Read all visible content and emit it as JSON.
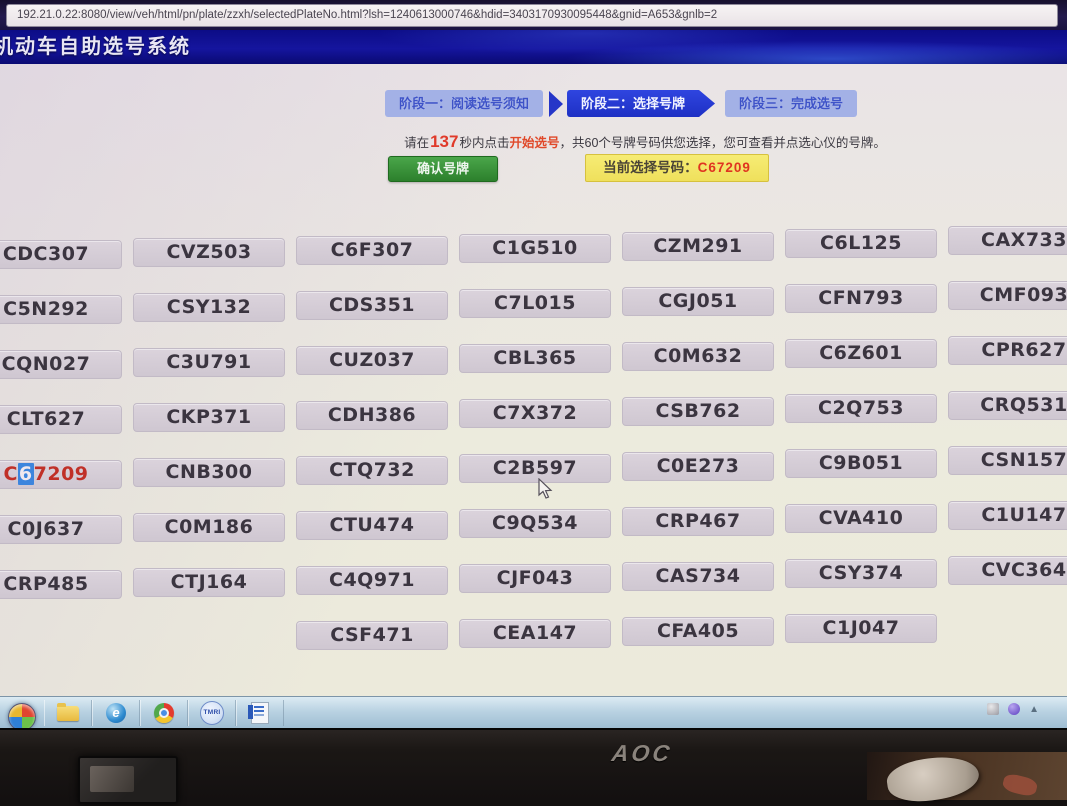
{
  "browser": {
    "url": "192.21.0.22:8080/view/veh/html/pn/plate/zzxh/selectedPlateNo.html?lsh=1240613000746&hdid=3403170930095448&gnid=A653&gnlb=2"
  },
  "header": {
    "title": "机动车自助选号系统"
  },
  "stages": [
    {
      "label": "阶段一：阅读选号须知",
      "active": false
    },
    {
      "label": "阶段二：选择号牌",
      "active": true
    },
    {
      "label": "阶段三：完成选号",
      "active": false
    }
  ],
  "instruction": {
    "prefix": "请在",
    "countdown": "137",
    "middle": "秒内点击",
    "link": "开始选号",
    "suffix": "，共60个号牌号码供您选择，您可查看并点选心仪的号牌。"
  },
  "toolbar": {
    "confirm_label": "确认号牌",
    "current_label": "当前选择号码：",
    "current_value": "C67209"
  },
  "plates": {
    "selected": "C67209",
    "selected_parts": {
      "pre": "C",
      "highlight": "6",
      "post": "7209"
    },
    "check_glyph": "✔",
    "columns": [
      [
        "CDC307",
        "C5N292",
        "CQN027",
        "CLT627",
        "C67209",
        "C0J637",
        "CRP485"
      ],
      [
        "CVZ503",
        "CSY132",
        "C3U791",
        "CKP371",
        "CNB300",
        "C0M186",
        "CTJ164"
      ],
      [
        "C6F307",
        "CDS351",
        "CUZ037",
        "CDH386",
        "CTQ732",
        "CTU474",
        "C4Q971",
        "CSF471"
      ],
      [
        "C1G510",
        "C7L015",
        "CBL365",
        "C7X372",
        "C2B597",
        "C9Q534",
        "CJF043",
        "CEA147"
      ],
      [
        "CZM291",
        "CGJ051",
        "C0M632",
        "CSB762",
        "C0E273",
        "CRP467",
        "CAS734",
        "CFA405"
      ],
      [
        "C6L125",
        "CFN793",
        "C6Z601",
        "C2Q753",
        "C9B051",
        "CVA410",
        "CSY374",
        "C1J047"
      ],
      [
        "CAX733",
        "CMF093",
        "CPR627",
        "CRQ531",
        "CSN157",
        "C1U147",
        "CVC364"
      ]
    ]
  },
  "taskbar": {
    "tmri_label": "TMRI",
    "ie_label": "e"
  },
  "monitor": {
    "brand": "AOC"
  },
  "colors": {
    "accent_blue": "#2636c8",
    "stage_light": "#a3b1e6",
    "confirm_green": "#2c802c",
    "current_yellow": "#efe05c",
    "selected_red": "#c03028",
    "highlight_blue": "#3d85dd"
  }
}
